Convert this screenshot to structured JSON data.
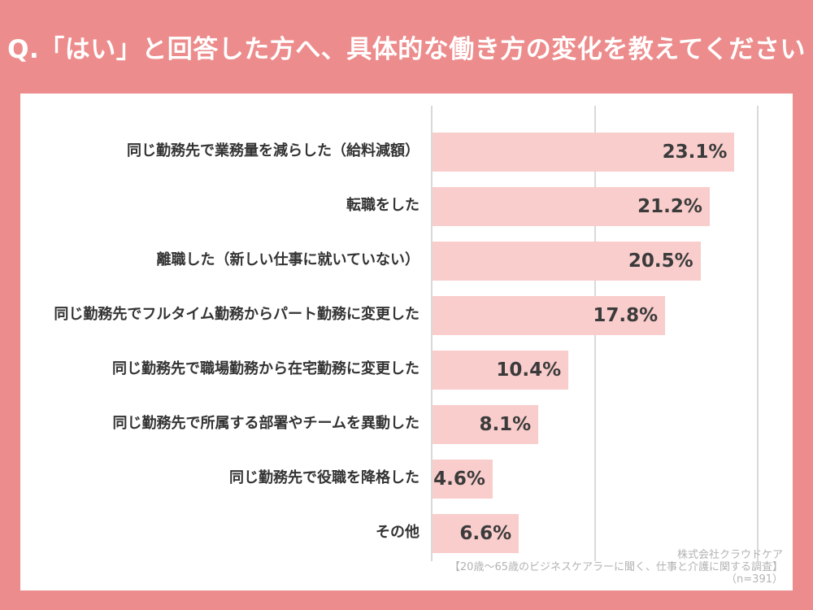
{
  "title": "Q.「はい」と回答した方へ、具体的な働き方の変化を教えてください",
  "chart_data": {
    "type": "bar",
    "orientation": "horizontal",
    "title": "Q.「はい」と回答した方へ、具体的な働き方の変化を教えてください",
    "categories": [
      "同じ勤務先で業務量を減らした（給料減額）",
      "転職をした",
      "離職した（新しい仕事に就いていない）",
      "同じ勤務先でフルタイム勤務からパート勤務に変更した",
      "同じ勤務先で職場勤務から在宅勤務に変更した",
      "同じ勤務先で所属する部署やチームを異動した",
      "同じ勤務先で役職を降格した",
      "その他"
    ],
    "values": [
      23.1,
      21.2,
      20.5,
      17.8,
      10.4,
      8.1,
      4.6,
      6.6
    ],
    "value_labels": [
      "23.1%",
      "21.2%",
      "20.5%",
      "17.8%",
      "10.4%",
      "8.1%",
      "4.6%",
      "6.6%"
    ],
    "xlabel": "",
    "ylabel": "",
    "xlim": [
      0,
      25
    ],
    "gridline_values": [
      0,
      12.5,
      25
    ],
    "grid": true,
    "legend": false,
    "value_label_position": "inside-end",
    "colors": {
      "background": "#ED8C8C",
      "card": "#FFFFFF",
      "bar": "#F9CDCC",
      "category_text": "#333333",
      "value_text": "#3B3B3B",
      "gridline": "#D9D9D9",
      "title_text": "#FFFFFF",
      "footer_text": "#B3B3B3"
    }
  },
  "footer": {
    "company": "株式会社クラウドケア",
    "survey": "【20歳～65歳のビジネスケアラーに聞く、仕事と介護に関する調査】",
    "sample": "（n=391）"
  }
}
